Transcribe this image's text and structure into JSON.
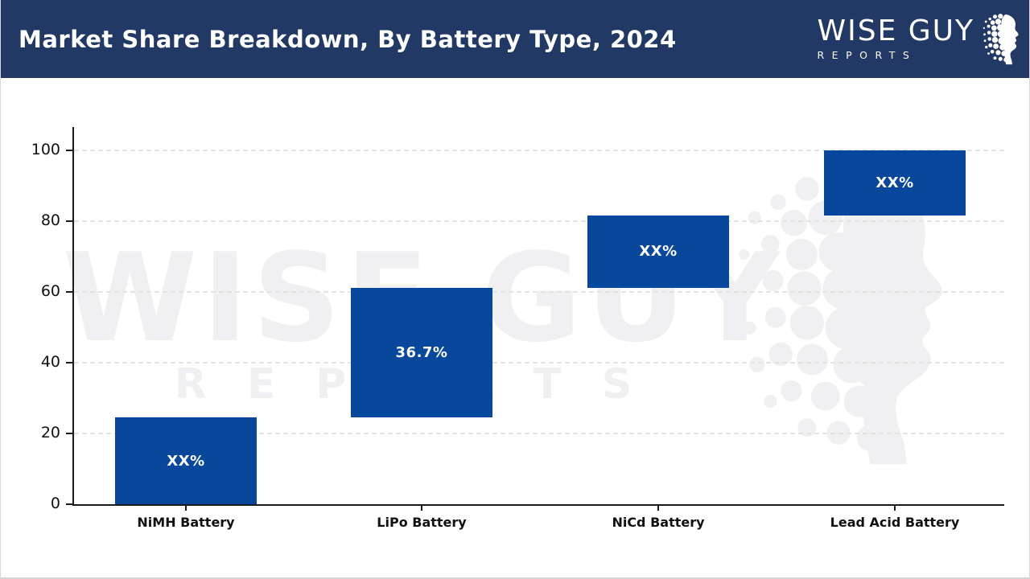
{
  "header": {
    "title": "Market Share Breakdown, By Battery Type, 2024",
    "background": "#213964",
    "logo": {
      "line1": "WISE GUY",
      "line2": "REPORTS"
    }
  },
  "watermark": {
    "line1": "WISE GUY",
    "line2": "REPORTS"
  },
  "chart_data": {
    "type": "bar",
    "subtype": "waterfall",
    "title": "Market Share Breakdown, By Battery Type, 2024",
    "xlabel": "",
    "ylabel": "",
    "ylim": [
      0,
      100
    ],
    "yticks": [
      0,
      20,
      40,
      60,
      80,
      100
    ],
    "grid": "dashed-horizontal",
    "legend": "none",
    "categories": [
      "NiMH Battery",
      "LiPo Battery",
      "NiCd Battery",
      "Lead Acid Battery"
    ],
    "segments": [
      {
        "category": "NiMH Battery",
        "start": 0,
        "end": 24.5,
        "label": "XX%"
      },
      {
        "category": "LiPo Battery",
        "start": 24.5,
        "end": 61.2,
        "label": "36.7%"
      },
      {
        "category": "NiCd Battery",
        "start": 61.2,
        "end": 81.6,
        "label": "XX%"
      },
      {
        "category": "Lead Acid Battery",
        "start": 81.6,
        "end": 100,
        "label": "XX%"
      }
    ],
    "bar_color": "#07489c",
    "bar_label_color": "#ffffff",
    "grid_color": "#e3e3e3",
    "axis_color": "#1a1a1a"
  }
}
